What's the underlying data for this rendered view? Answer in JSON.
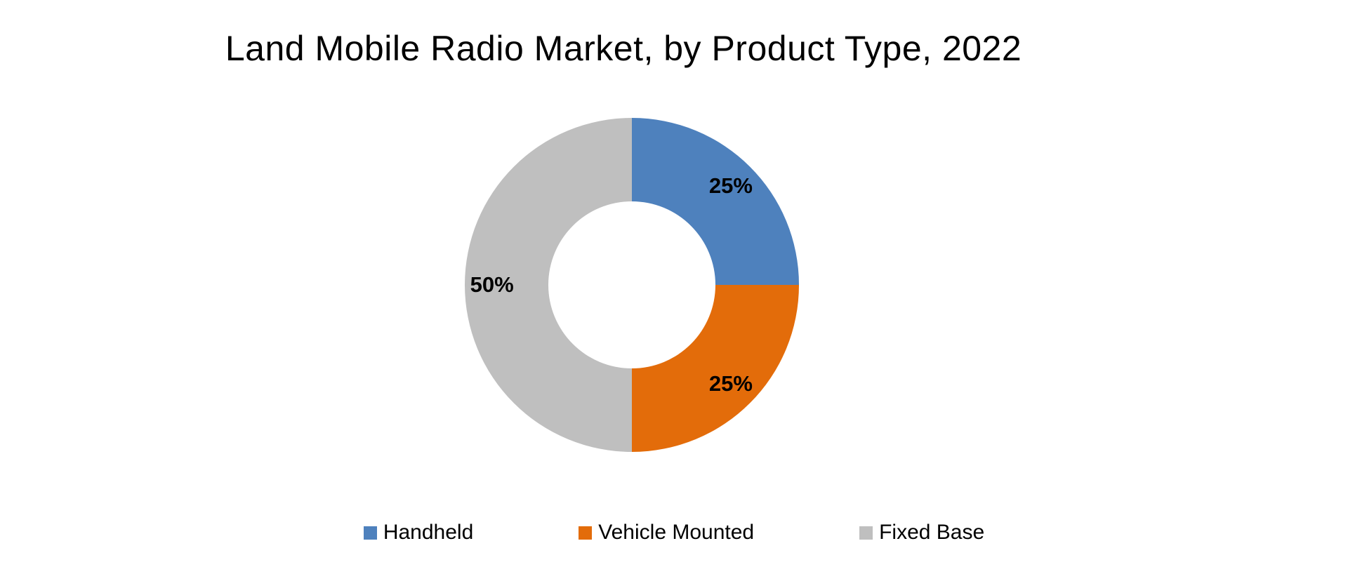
{
  "title": "Land Mobile Radio Market, by Product Type, 2022",
  "chart_data": {
    "type": "pie",
    "subtype": "donut",
    "title": "Land Mobile Radio Market, by Product Type, 2022",
    "categories": [
      "Handheld",
      "Vehicle Mounted",
      "Fixed Base"
    ],
    "values": [
      25,
      25,
      50
    ],
    "slices": [
      {
        "name": "Handheld",
        "value": 25,
        "label": "25%",
        "color": "#4E81BD"
      },
      {
        "name": "Vehicle Mounted",
        "value": 25,
        "label": "25%",
        "color": "#E36C0A"
      },
      {
        "name": "Fixed Base",
        "value": 50,
        "label": "50%",
        "color": "#BFBFBF"
      }
    ],
    "start_angle_deg": 0,
    "direction": "clockwise",
    "inner_radius_ratio": 0.5,
    "data_label_color": "#000000",
    "legend_position": "bottom",
    "background_color": "#FFFFFF"
  }
}
